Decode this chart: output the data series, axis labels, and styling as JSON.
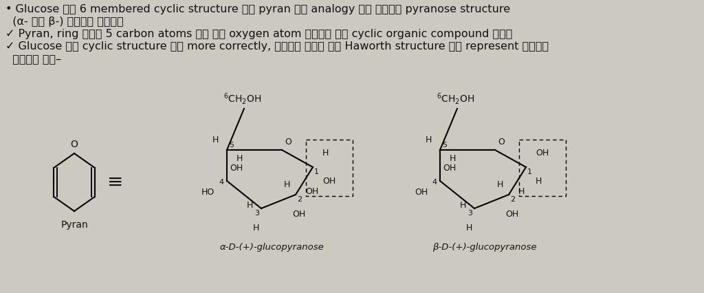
{
  "bg_color": "#ccc9c1",
  "text_color": "#111111",
  "line1": "Glucose के 6 membered cyclic structure को pyran से analogy के कारण pyranose structure",
  "line1b": "(α- या β-) कहते हैं।",
  "line2": "Pyran, ring में 5 carbon atoms और एक oxygen atom वाला एक cyclic organic compound है।",
  "line3": "Glucose के cyclic structure को more correctly, नीचे दिए गए Haworth structure से represent किया",
  "line4": "जाता है–",
  "label_alpha": "α-D-(+)-glucopyranose",
  "label_beta": "β-D-(+)-glucopyranose",
  "label_pyran": "Pyran"
}
